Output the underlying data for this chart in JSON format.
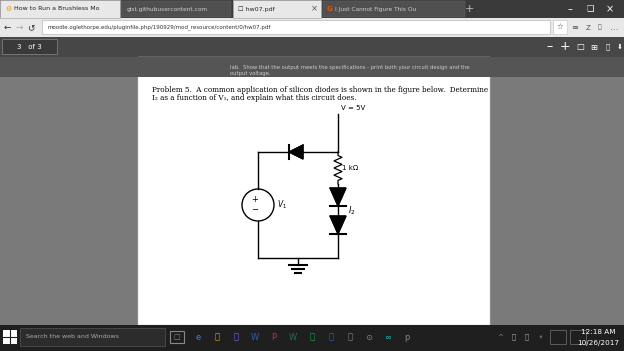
{
  "tab1_text": "How to Run a Brushless Mo",
  "tab2_text": "gist.githubusercontent.com",
  "tab3_text": "hw07.pdf",
  "tab4_text": "I Just Cannot Figure This Ou",
  "url_bar": "moodle.oglethorpe.edu/pluginfile.php/190929/mod_resource/content/0/hw07.pdf",
  "page_indicator": "3   of 3",
  "prev_text1": "lab.  Show that the output meets the specifications - print both your circuit design and the",
  "prev_text2": "output voltage.",
  "problem_text_line1": "Problem 5.  A common application of silicon diodes is shown in the figure below.  Determine",
  "problem_text_line2": "I2 as a function of V1, and explain what this circuit does.",
  "circuit_label_v": "V = 5V",
  "circuit_label_r": "1 kΩ",
  "circuit_label_v1": "V_1",
  "circuit_label_i2": "I_2",
  "taskbar_time": "12:18 AM",
  "taskbar_date": "10/26/2017",
  "taskbar_search": "Search the web and Windows",
  "tab_bar_bg": "#3a3a3a",
  "tab_active_bg": "#f0f0f0",
  "tab_inactive_bg": "#505050",
  "addr_bar_bg": "#e8e8e8",
  "pdf_toolbar_bg": "#474747",
  "page_left_bg": "#7a7a7a",
  "page_right_bg": "#7a7a7a",
  "pdf_bg": "#ffffff",
  "taskbar_bg": "#1f1f1f",
  "taskbar_text": "#cccccc"
}
